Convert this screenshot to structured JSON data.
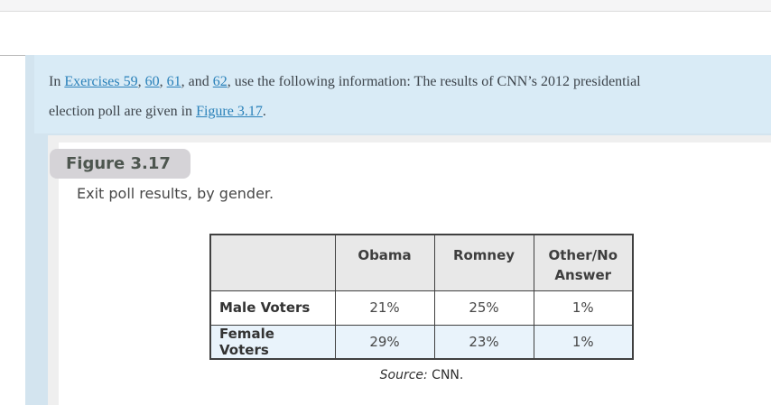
{
  "topbar": {},
  "colors": {
    "callout_bg": "#d9ebf6",
    "callout_outer_bg": "#d3e4ef",
    "link": "#2980b9",
    "body_text": "#3d444b",
    "figure_frame_bg": "#efefef",
    "badge_bg": "#d5d3d7",
    "badge_text": "#4d564f",
    "table_border": "#404040",
    "table_header_bg": "#e8e8e8",
    "table_alt_row_bg": "#e9f3fb"
  },
  "instructions": {
    "lines": [
      {
        "segments": [
          {
            "text": "In "
          },
          {
            "text": "Exercises 59",
            "link": true,
            "name": "exercises-59-link"
          },
          {
            "text": ", "
          },
          {
            "text": "60",
            "link": true,
            "name": "exercise-60-link"
          },
          {
            "text": ", "
          },
          {
            "text": "61",
            "link": true,
            "name": "exercise-61-link"
          },
          {
            "text": ", and "
          },
          {
            "text": "62",
            "link": true,
            "name": "exercise-62-link"
          },
          {
            "text": ", use the following information: The results of CNN’s 2012 presidential"
          }
        ]
      },
      {
        "segments": [
          {
            "text": "election poll are given in "
          },
          {
            "text": "Figure 3.17",
            "link": true,
            "name": "figure-3-17-link"
          },
          {
            "text": "."
          }
        ]
      }
    ]
  },
  "figure": {
    "badge_label": "Figure 3.17",
    "caption": "Exit poll results, by gender.",
    "source_label": "Source:",
    "source_text": " CNN."
  },
  "chart_data": {
    "type": "table",
    "title": "Exit poll results, by gender.",
    "columns": [
      "",
      "Obama",
      "Romney",
      "Other/No Answer"
    ],
    "rows": [
      {
        "label": "Male Voters",
        "values": [
          "21%",
          "25%",
          "1%"
        ]
      },
      {
        "label": "Female Voters",
        "values": [
          "29%",
          "23%",
          "1%"
        ]
      }
    ],
    "source": "CNN"
  }
}
